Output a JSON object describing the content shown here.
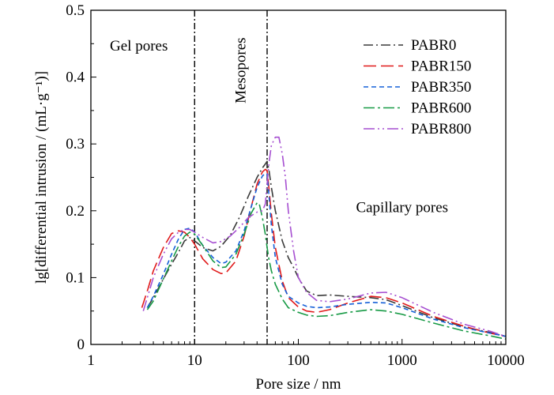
{
  "chart_data": {
    "type": "line",
    "xscale": "log",
    "xlabel": "Pore size / nm",
    "ylabel": "lg[differential intrusion / (mL·g⁻¹)]",
    "xlim": [
      1,
      10000
    ],
    "ylim": [
      0,
      0.5
    ],
    "xticks": [
      1,
      10,
      100,
      1000,
      10000
    ],
    "xtick_labels": [
      "1",
      "10",
      "100",
      "1000",
      "10000"
    ],
    "yticks": [
      0,
      0.1,
      0.2,
      0.3,
      0.4,
      0.5
    ],
    "ytick_labels": [
      "0",
      "0.1",
      "0.2",
      "0.3",
      "0.4",
      "0.5"
    ],
    "vlines": [
      10,
      50
    ],
    "regions": [
      {
        "label": "Gel pores",
        "x": 2.9,
        "y": 0.44
      },
      {
        "label": "Mesopores",
        "x": 31,
        "y": 0.41,
        "rotated": true
      },
      {
        "label": "Capillary pores",
        "x": 1000,
        "y": 0.198
      }
    ],
    "legend_position": "top-right",
    "series": [
      {
        "name": "PABR0",
        "color": "#3a3a3a",
        "dash": "12,4,2,4",
        "x": [
          3.5,
          4,
          5,
          6,
          7,
          8,
          9,
          10,
          12,
          15,
          18,
          22,
          27,
          33,
          40,
          45,
          48,
          50,
          52,
          55,
          60,
          70,
          80,
          90,
          100,
          120,
          150,
          200,
          300,
          500,
          700,
          1000,
          2000,
          4000,
          7000,
          10000
        ],
        "y": [
          0.055,
          0.07,
          0.098,
          0.12,
          0.138,
          0.155,
          0.16,
          0.155,
          0.145,
          0.14,
          0.147,
          0.163,
          0.19,
          0.222,
          0.25,
          0.264,
          0.27,
          0.274,
          0.262,
          0.235,
          0.2,
          0.155,
          0.13,
          0.115,
          0.1,
          0.08,
          0.073,
          0.074,
          0.072,
          0.07,
          0.067,
          0.058,
          0.04,
          0.026,
          0.018,
          0.012
        ]
      },
      {
        "name": "PABR150",
        "color": "#e01a1a",
        "dash": "16,6",
        "x": [
          3.1,
          3.5,
          4,
          5,
          6,
          7,
          8,
          9,
          10,
          12,
          15,
          18,
          20,
          25,
          30,
          35,
          40,
          45,
          48,
          50,
          52,
          55,
          60,
          70,
          80,
          100,
          120,
          150,
          200,
          300,
          500,
          700,
          1000,
          2000,
          4000,
          7000,
          10000
        ],
        "y": [
          0.055,
          0.08,
          0.11,
          0.145,
          0.166,
          0.17,
          0.168,
          0.16,
          0.15,
          0.128,
          0.112,
          0.106,
          0.107,
          0.125,
          0.162,
          0.205,
          0.24,
          0.258,
          0.262,
          0.26,
          0.235,
          0.195,
          0.145,
          0.095,
          0.07,
          0.056,
          0.05,
          0.048,
          0.052,
          0.062,
          0.072,
          0.07,
          0.062,
          0.042,
          0.027,
          0.017,
          0.012
        ]
      },
      {
        "name": "PABR350",
        "color": "#1560d8",
        "dash": "6,4",
        "x": [
          3.5,
          4,
          5,
          6,
          7,
          8,
          9,
          10,
          12,
          15,
          18,
          20,
          25,
          30,
          35,
          40,
          45,
          48,
          50,
          52,
          55,
          60,
          70,
          80,
          100,
          120,
          150,
          200,
          300,
          500,
          700,
          1000,
          2000,
          4000,
          7000,
          10000
        ],
        "y": [
          0.055,
          0.072,
          0.105,
          0.135,
          0.158,
          0.172,
          0.174,
          0.168,
          0.148,
          0.13,
          0.121,
          0.123,
          0.14,
          0.17,
          0.205,
          0.235,
          0.252,
          0.256,
          0.255,
          0.225,
          0.178,
          0.13,
          0.09,
          0.072,
          0.062,
          0.057,
          0.055,
          0.056,
          0.06,
          0.063,
          0.062,
          0.055,
          0.038,
          0.025,
          0.017,
          0.012
        ]
      },
      {
        "name": "PABR600",
        "color": "#179a45",
        "dash": "14,4,3,4",
        "x": [
          3.5,
          4,
          5,
          6,
          7,
          8,
          9,
          10,
          12,
          15,
          18,
          20,
          25,
          30,
          35,
          40,
          42,
          45,
          48,
          50,
          52,
          55,
          60,
          70,
          80,
          100,
          120,
          150,
          200,
          300,
          500,
          700,
          1000,
          2000,
          4000,
          7000,
          10000
        ],
        "y": [
          0.052,
          0.065,
          0.098,
          0.125,
          0.147,
          0.162,
          0.168,
          0.165,
          0.148,
          0.125,
          0.115,
          0.116,
          0.135,
          0.165,
          0.196,
          0.212,
          0.21,
          0.19,
          0.165,
          0.145,
          0.128,
          0.11,
          0.09,
          0.068,
          0.055,
          0.048,
          0.044,
          0.042,
          0.043,
          0.048,
          0.052,
          0.05,
          0.045,
          0.032,
          0.02,
          0.013,
          0.008
        ]
      },
      {
        "name": "PABR800",
        "color": "#a64fd1",
        "dash": "14,4,2,4,2,4",
        "x": [
          3.2,
          3.5,
          4,
          5,
          6,
          7,
          8,
          9,
          10,
          12,
          15,
          18,
          22,
          27,
          33,
          40,
          45,
          48,
          50,
          52,
          55,
          60,
          65,
          70,
          75,
          80,
          90,
          100,
          120,
          150,
          200,
          300,
          500,
          700,
          1000,
          2000,
          4000,
          7000,
          10000
        ],
        "y": [
          0.05,
          0.07,
          0.1,
          0.135,
          0.158,
          0.168,
          0.172,
          0.172,
          0.168,
          0.16,
          0.152,
          0.154,
          0.162,
          0.175,
          0.19,
          0.198,
          0.2,
          0.21,
          0.24,
          0.27,
          0.298,
          0.31,
          0.31,
          0.285,
          0.25,
          0.2,
          0.14,
          0.1,
          0.078,
          0.066,
          0.064,
          0.068,
          0.077,
          0.078,
          0.07,
          0.048,
          0.03,
          0.02,
          0.012
        ]
      }
    ]
  }
}
